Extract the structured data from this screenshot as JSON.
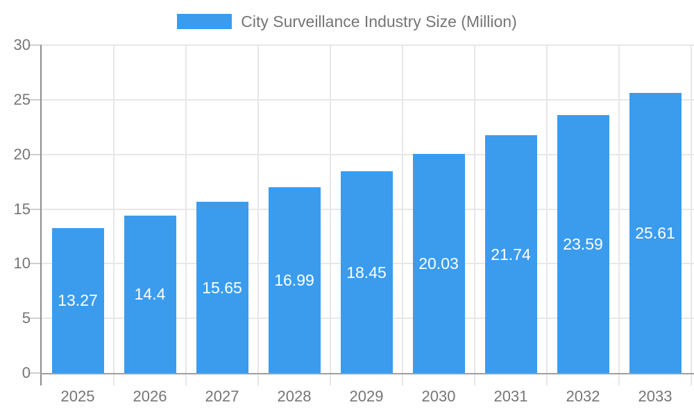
{
  "legend": {
    "label": "City Surveillance Industry Size (Million)"
  },
  "chart_data": {
    "type": "bar",
    "title": "City Surveillance Industry Size (Million)",
    "categories": [
      "2025",
      "2026",
      "2027",
      "2028",
      "2029",
      "2030",
      "2031",
      "2032",
      "2033"
    ],
    "values": [
      13.27,
      14.4,
      15.65,
      16.99,
      18.45,
      20.03,
      21.74,
      23.59,
      25.61
    ],
    "value_labels": [
      "13.27",
      "14.4",
      "15.65",
      "16.99",
      "18.45",
      "20.03",
      "21.74",
      "23.59",
      "25.61"
    ],
    "xlabel": "",
    "ylabel": "",
    "ylim": [
      0,
      30
    ],
    "yticks": [
      0,
      5,
      10,
      15,
      20,
      25,
      30
    ],
    "ytick_labels": [
      "0",
      "5",
      "10",
      "15",
      "20",
      "25",
      "30"
    ],
    "grid": true,
    "legend_position": "top-center"
  },
  "colors": {
    "bar": "#3b9cee",
    "bar_value_text": "#ffffff",
    "axis_text": "#757575",
    "legend_text": "#757575",
    "gridline": "#e7e7e7",
    "y_axis_line": "#8c8c8c",
    "x_axis_line": "#9e9e9e",
    "tick": "#cfcfcf",
    "background": "#ffffff"
  }
}
